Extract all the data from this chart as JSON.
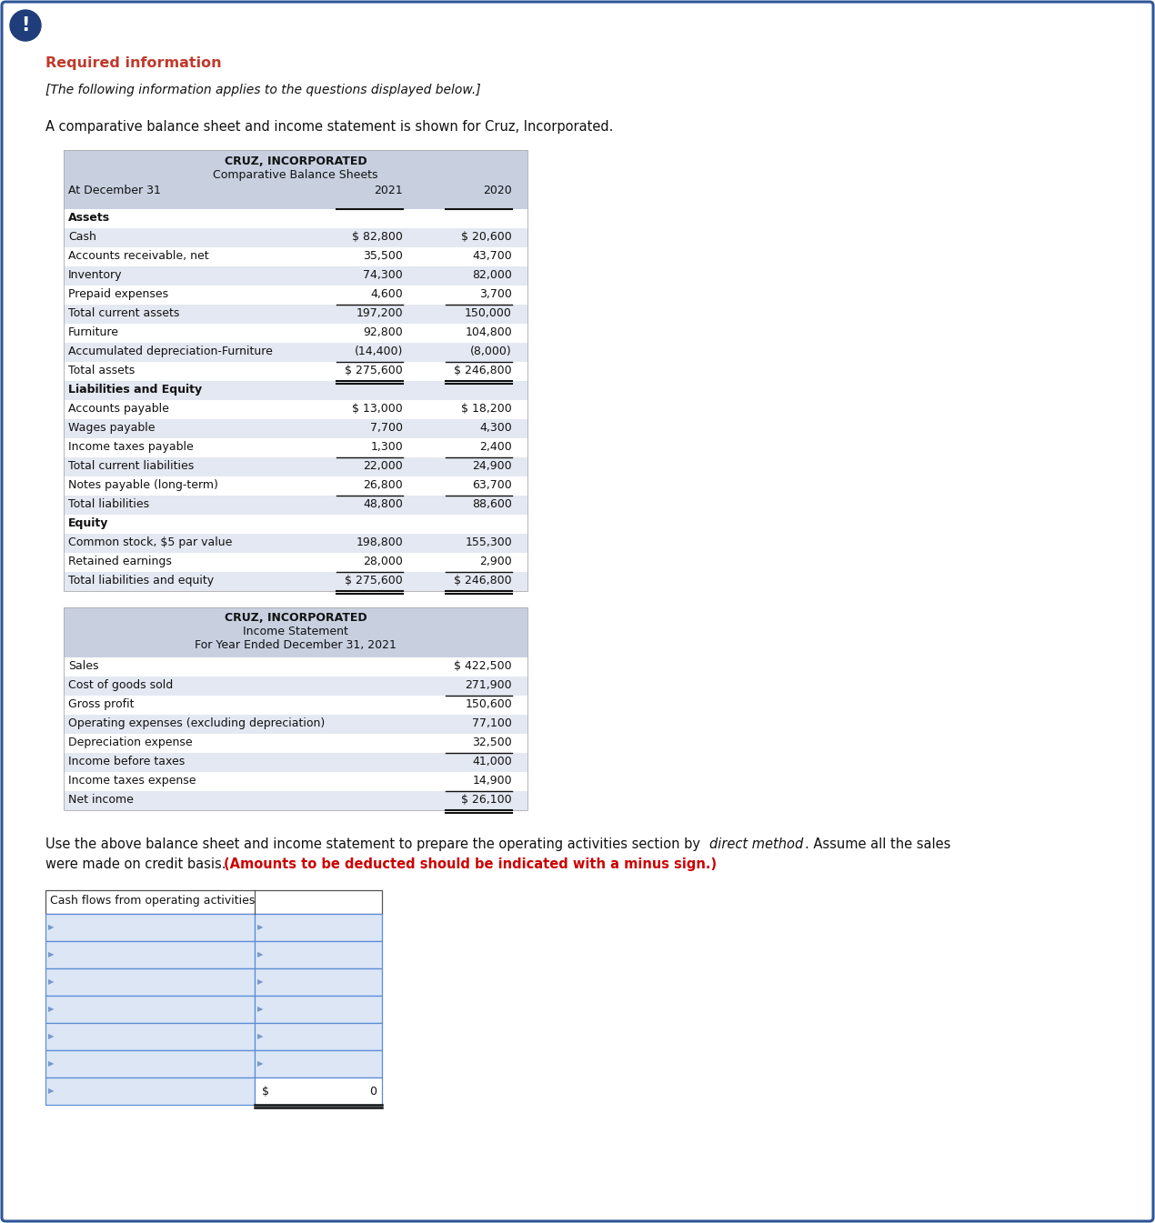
{
  "page_bg": "#ffffff",
  "border_color": "#2e5597",
  "exclamation_color": "#1f3d7a",
  "required_info_color": "#c0392b",
  "required_info_text": "Required information",
  "italic_text": "[The following information applies to the questions displayed below.]",
  "intro_text": "A comparative balance sheet and income statement is shown for Cruz, Incorporated.",
  "bs_title1": "CRUZ, INCORPORATED",
  "bs_title2": "Comparative Balance Sheets",
  "bs_header_label": "At December 31",
  "bs_col1": "2021",
  "bs_col2": "2020",
  "bs_header_bg": "#c8d0e0",
  "balance_sheet_rows": [
    {
      "label": "Assets",
      "val1": "",
      "val2": "",
      "bold": true,
      "bg": "#ffffff",
      "top_line": false,
      "double_line": false
    },
    {
      "label": "Cash",
      "val1": "$ 82,800",
      "val2": "$ 20,600",
      "bold": false,
      "bg": "#e4e8f2",
      "top_line": false,
      "double_line": false
    },
    {
      "label": "Accounts receivable, net",
      "val1": "35,500",
      "val2": "43,700",
      "bold": false,
      "bg": "#ffffff",
      "top_line": false,
      "double_line": false
    },
    {
      "label": "Inventory",
      "val1": "74,300",
      "val2": "82,000",
      "bold": false,
      "bg": "#e4e8f2",
      "top_line": false,
      "double_line": false
    },
    {
      "label": "Prepaid expenses",
      "val1": "4,600",
      "val2": "3,700",
      "bold": false,
      "bg": "#ffffff",
      "top_line": false,
      "double_line": false
    },
    {
      "label": "Total current assets",
      "val1": "197,200",
      "val2": "150,000",
      "bold": false,
      "bg": "#e4e8f2",
      "top_line": true,
      "double_line": false
    },
    {
      "label": "Furniture",
      "val1": "92,800",
      "val2": "104,800",
      "bold": false,
      "bg": "#ffffff",
      "top_line": false,
      "double_line": false
    },
    {
      "label": "Accumulated depreciation-Furniture",
      "val1": "(14,400)",
      "val2": "(8,000)",
      "bold": false,
      "bg": "#e4e8f2",
      "top_line": false,
      "double_line": false
    },
    {
      "label": "Total assets",
      "val1": "$ 275,600",
      "val2": "$ 246,800",
      "bold": false,
      "bg": "#ffffff",
      "top_line": true,
      "double_line": true
    },
    {
      "label": "Liabilities and Equity",
      "val1": "",
      "val2": "",
      "bold": true,
      "bg": "#e4e8f2",
      "top_line": false,
      "double_line": false
    },
    {
      "label": "Accounts payable",
      "val1": "$ 13,000",
      "val2": "$ 18,200",
      "bold": false,
      "bg": "#ffffff",
      "top_line": false,
      "double_line": false
    },
    {
      "label": "Wages payable",
      "val1": "7,700",
      "val2": "4,300",
      "bold": false,
      "bg": "#e4e8f2",
      "top_line": false,
      "double_line": false
    },
    {
      "label": "Income taxes payable",
      "val1": "1,300",
      "val2": "2,400",
      "bold": false,
      "bg": "#ffffff",
      "top_line": false,
      "double_line": false
    },
    {
      "label": "Total current liabilities",
      "val1": "22,000",
      "val2": "24,900",
      "bold": false,
      "bg": "#e4e8f2",
      "top_line": true,
      "double_line": false
    },
    {
      "label": "Notes payable (long-term)",
      "val1": "26,800",
      "val2": "63,700",
      "bold": false,
      "bg": "#ffffff",
      "top_line": false,
      "double_line": false
    },
    {
      "label": "Total liabilities",
      "val1": "48,800",
      "val2": "88,600",
      "bold": false,
      "bg": "#e4e8f2",
      "top_line": true,
      "double_line": false
    },
    {
      "label": "Equity",
      "val1": "",
      "val2": "",
      "bold": true,
      "bg": "#ffffff",
      "top_line": false,
      "double_line": false
    },
    {
      "label": "Common stock, $5 par value",
      "val1": "198,800",
      "val2": "155,300",
      "bold": false,
      "bg": "#e4e8f2",
      "top_line": false,
      "double_line": false
    },
    {
      "label": "Retained earnings",
      "val1": "28,000",
      "val2": "2,900",
      "bold": false,
      "bg": "#ffffff",
      "top_line": false,
      "double_line": false
    },
    {
      "label": "Total liabilities and equity",
      "val1": "$ 275,600",
      "val2": "$ 246,800",
      "bold": false,
      "bg": "#e4e8f2",
      "top_line": true,
      "double_line": true
    }
  ],
  "is_title1": "CRUZ, INCORPORATED",
  "is_title2": "Income Statement",
  "is_title3": "For Year Ended December 31, 2021",
  "income_rows": [
    {
      "label": "Sales",
      "val": "$ 422,500",
      "bold": false,
      "bg": "#ffffff",
      "top_line": false,
      "double_line": false
    },
    {
      "label": "Cost of goods sold",
      "val": "271,900",
      "bold": false,
      "bg": "#e4e8f2",
      "top_line": false,
      "double_line": false
    },
    {
      "label": "Gross profit",
      "val": "150,600",
      "bold": false,
      "bg": "#ffffff",
      "top_line": true,
      "double_line": false
    },
    {
      "label": "Operating expenses (excluding depreciation)",
      "val": "77,100",
      "bold": false,
      "bg": "#e4e8f2",
      "top_line": false,
      "double_line": false
    },
    {
      "label": "Depreciation expense",
      "val": "32,500",
      "bold": false,
      "bg": "#ffffff",
      "top_line": false,
      "double_line": false
    },
    {
      "label": "Income before taxes",
      "val": "41,000",
      "bold": false,
      "bg": "#e4e8f2",
      "top_line": true,
      "double_line": false
    },
    {
      "label": "Income taxes expense",
      "val": "14,900",
      "bold": false,
      "bg": "#ffffff",
      "top_line": false,
      "double_line": false
    },
    {
      "label": "Net income",
      "val": "$ 26,100",
      "bold": false,
      "bg": "#e4e8f2",
      "top_line": true,
      "double_line": true
    }
  ],
  "cash_flow_header": "Cash flows from operating activities",
  "cash_flow_rows": 6,
  "input_bg": "#dce6f5",
  "input_border": "#5b8dd9"
}
